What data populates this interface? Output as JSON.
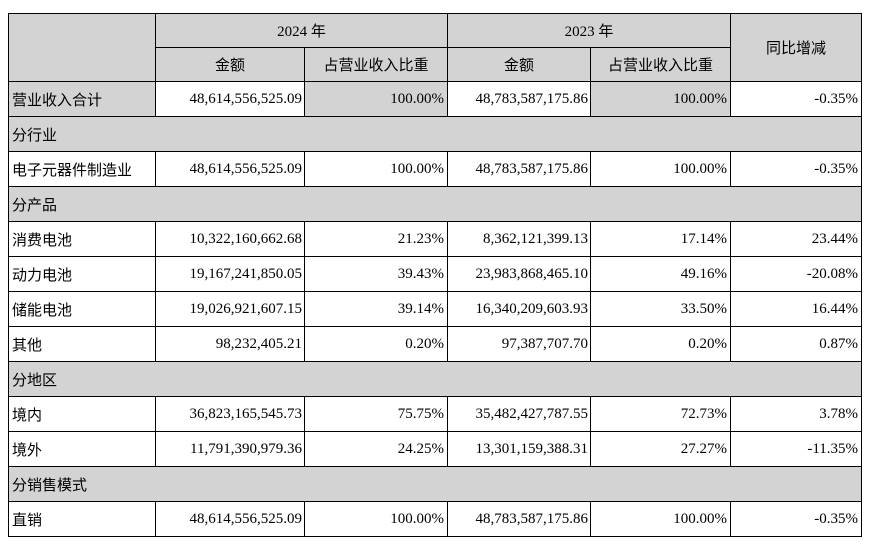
{
  "table": {
    "header": {
      "year_2024": "2024 年",
      "year_2023": "2023 年",
      "yoy": "同比增减",
      "amount_2024": "金额",
      "pct_2024": "占营业收入比重",
      "amount_2023": "金额",
      "pct_2023": "占营业收入比重"
    },
    "rows": [
      {
        "type": "data",
        "label": "营业收入合计",
        "a24": "48,614,556,525.09",
        "p24": "100.00%",
        "a23": "48,783,587,175.86",
        "p23": "100.00%",
        "yoy": "-0.35%"
      },
      {
        "type": "section",
        "label": "分行业"
      },
      {
        "type": "data",
        "label": "电子元器件制造业",
        "a24": "48,614,556,525.09",
        "p24": "100.00%",
        "a23": "48,783,587,175.86",
        "p23": "100.00%",
        "yoy": "-0.35%"
      },
      {
        "type": "section",
        "label": "分产品"
      },
      {
        "type": "data",
        "label": "消费电池",
        "a24": "10,322,160,662.68",
        "p24": "21.23%",
        "a23": "8,362,121,399.13",
        "p23": "17.14%",
        "yoy": "23.44%"
      },
      {
        "type": "data",
        "label": "动力电池",
        "a24": "19,167,241,850.05",
        "p24": "39.43%",
        "a23": "23,983,868,465.10",
        "p23": "49.16%",
        "yoy": "-20.08%"
      },
      {
        "type": "data",
        "label": "储能电池",
        "a24": "19,026,921,607.15",
        "p24": "39.14%",
        "a23": "16,340,209,603.93",
        "p23": "33.50%",
        "yoy": "16.44%"
      },
      {
        "type": "data",
        "label": "其他",
        "a24": "98,232,405.21",
        "p24": "0.20%",
        "a23": "97,387,707.70",
        "p23": "0.20%",
        "yoy": "0.87%"
      },
      {
        "type": "section",
        "label": "分地区"
      },
      {
        "type": "data",
        "label": "境内",
        "a24": "36,823,165,545.73",
        "p24": "75.75%",
        "a23": "35,482,427,787.55",
        "p23": "72.73%",
        "yoy": "3.78%"
      },
      {
        "type": "data",
        "label": "境外",
        "a24": "11,791,390,979.36",
        "p24": "24.25%",
        "a23": "13,301,159,388.31",
        "p23": "27.27%",
        "yoy": "-11.35%"
      },
      {
        "type": "section",
        "label": "分销售模式"
      },
      {
        "type": "data",
        "label": "直销",
        "a24": "48,614,556,525.09",
        "p24": "100.00%",
        "a23": "48,783,587,175.86",
        "p23": "100.00%",
        "yoy": "-0.35%"
      }
    ],
    "colors": {
      "shading": "#d3d3d3",
      "border": "#000000",
      "text": "#000000"
    }
  }
}
